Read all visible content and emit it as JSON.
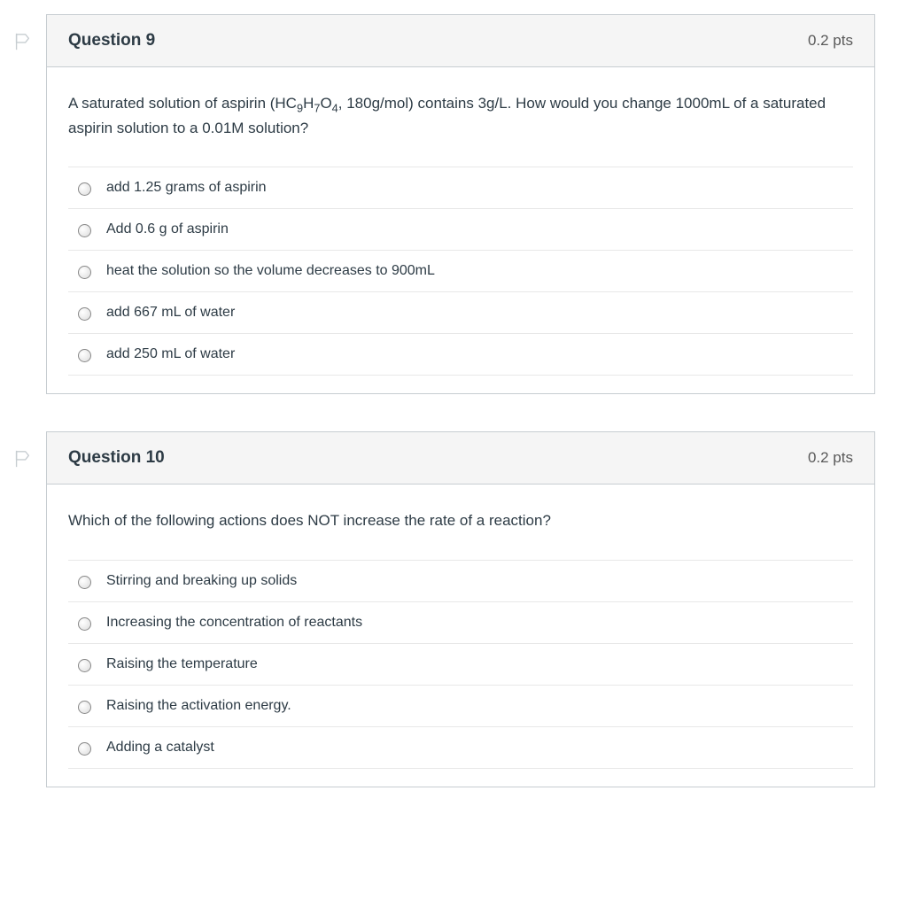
{
  "colors": {
    "border": "#c7cdd1",
    "header_bg": "#f5f5f5",
    "option_divider": "#e8e8e8",
    "text": "#2d3b45",
    "points_text": "#595959",
    "flag_idle": "#c7cdd1",
    "background": "#ffffff"
  },
  "questions": [
    {
      "number_label": "Question 9",
      "points_label": "0.2 pts",
      "prompt_html": "A saturated solution of aspirin (HC<sub>9</sub>H<sub>7</sub>O<sub>4</sub>, 180g/mol) contains 3g/L.  How would you change 1000mL of a saturated aspirin solution to a 0.01M solution?",
      "options": [
        "add 1.25 grams of aspirin",
        "Add 0.6 g of aspirin",
        "heat the solution so the volume decreases to 900mL",
        "add 667 mL of water",
        "add 250 mL of water"
      ]
    },
    {
      "number_label": "Question 10",
      "points_label": "0.2 pts",
      "prompt_html": "Which of the following actions does NOT increase the rate of a reaction?",
      "options": [
        "Stirring and breaking up solids",
        "Increasing the concentration of reactants",
        "Raising the temperature",
        "Raising the activation energy.",
        "Adding a catalyst"
      ]
    }
  ]
}
